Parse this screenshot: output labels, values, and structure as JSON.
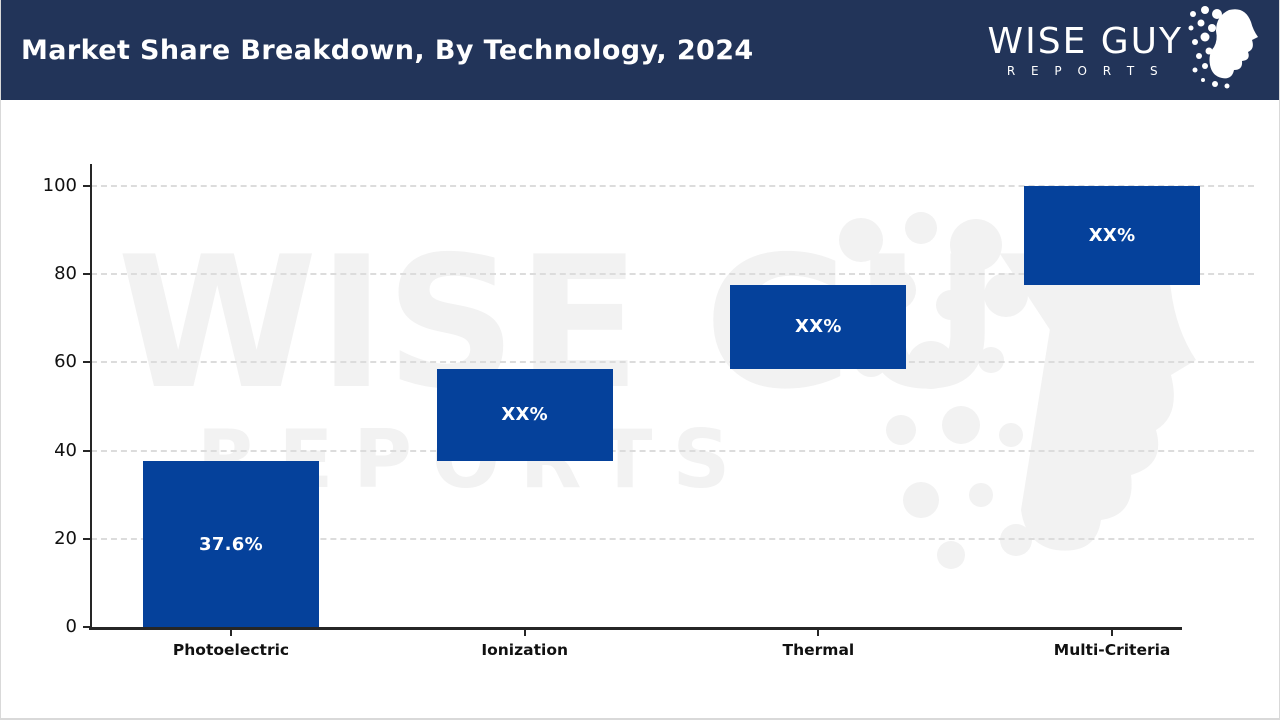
{
  "header": {
    "title": "Market Share Breakdown, By Technology, 2024",
    "logo": {
      "line1": "WISE GUY",
      "line2": "R E P O R T S"
    }
  },
  "watermark": {
    "line1": "WISE GUY",
    "line2": "REPORTS"
  },
  "colors": {
    "header_bg": "#223459",
    "bar": "#05419b",
    "bar_label": "#ffffff",
    "grid": "#dcdcdc",
    "axis": "#262626",
    "watermark": "#f2f2f2"
  },
  "chart_data": {
    "type": "bar",
    "subtype": "waterfall",
    "title": "Market Share Breakdown, By Technology, 2024",
    "categories": [
      "Photoelectric",
      "Ionization",
      "Thermal",
      "Multi-Criteria"
    ],
    "bars": [
      {
        "category": "Photoelectric",
        "start": 0,
        "end": 37.6,
        "value": 37.6,
        "label": "37.6%"
      },
      {
        "category": "Ionization",
        "start": 37.6,
        "end": 58.6,
        "value": 21.0,
        "label": "XX%"
      },
      {
        "category": "Thermal",
        "start": 58.6,
        "end": 77.5,
        "value": 18.9,
        "label": "XX%"
      },
      {
        "category": "Multi-Criteria",
        "start": 77.5,
        "end": 100,
        "value": 22.5,
        "label": "XX%"
      }
    ],
    "xlabel": "",
    "ylabel": "",
    "ylim": [
      0,
      100
    ],
    "yticks": [
      0,
      20,
      40,
      60,
      80,
      100
    ],
    "grid": "horizontal-dashed",
    "legend": "none"
  }
}
